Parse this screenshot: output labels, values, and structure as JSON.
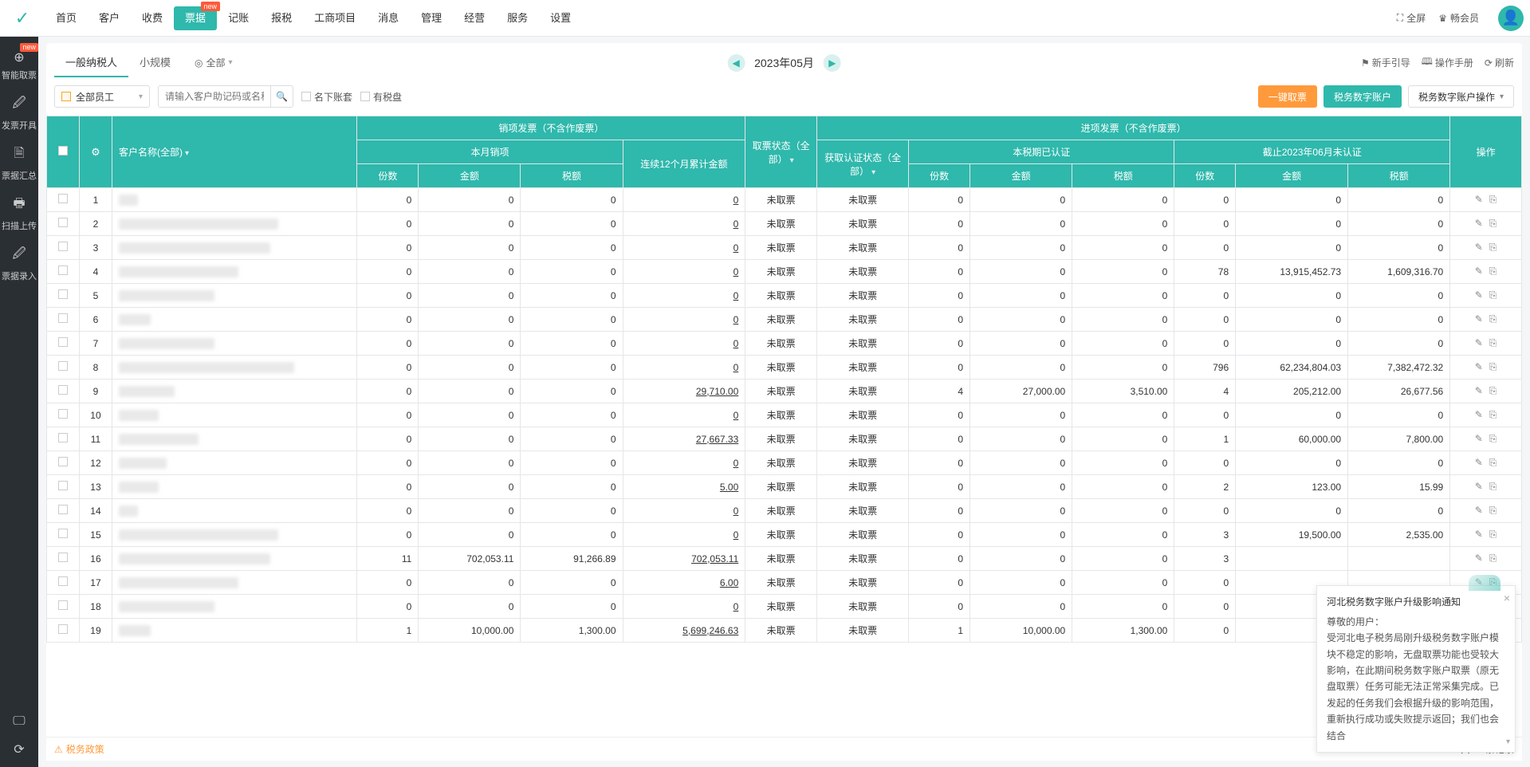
{
  "colors": {
    "accent": "#2fb8ac",
    "orange": "#ff9a3c",
    "badge_red": "#ff5a3a",
    "sidebar_bg": "#2a2f34",
    "border": "#e3e6e8"
  },
  "topnav": {
    "items": [
      "首页",
      "客户",
      "收费",
      "票据",
      "记账",
      "报税",
      "工商项目",
      "消息",
      "管理",
      "经营",
      "服务",
      "设置"
    ],
    "active_index": 3,
    "new_badge_indices": [
      3
    ],
    "right": {
      "fullscreen": "全屏",
      "member": "畅会员"
    }
  },
  "sidebar": {
    "items": [
      {
        "label": "智能取票",
        "icon": "⊕",
        "new": true
      },
      {
        "label": "发票开具",
        "icon": "🖉"
      },
      {
        "label": "票据汇总",
        "icon": "🗎"
      },
      {
        "label": "扫描上传",
        "icon": "🖶"
      },
      {
        "label": "票据录入",
        "icon": "🖉"
      }
    ],
    "bottom_icons": [
      "🖵",
      "⟳"
    ]
  },
  "tabs": {
    "items": [
      "一般纳税人",
      "小规模"
    ],
    "active_index": 0,
    "scope_icon": "◎",
    "scope_label": "全部",
    "period": "2023年05月",
    "right_links": [
      {
        "icon": "⚑",
        "label": "新手引导"
      },
      {
        "icon": "🕮",
        "label": "操作手册"
      },
      {
        "icon": "⟳",
        "label": "刷新"
      }
    ]
  },
  "toolbar": {
    "employee_label": "全部员工",
    "search_placeholder": "请输入客户助记码或名称",
    "chk1": "名下账套",
    "chk2": "有税盘",
    "btn_orange": "一键取票",
    "btn_teal": "税务数字账户",
    "btn_outline": "税务数字账户操作"
  },
  "table": {
    "header": {
      "customer": "客户名称(全部)",
      "sales_group": "销项发票（不含作废票）",
      "month_sales": "本月销项",
      "count": "份数",
      "amount": "金额",
      "tax": "税额",
      "rolling12": "连续12个月累计金额",
      "fetch_status": "取票状态（全部）",
      "purchase_group": "进项发票（不含作废票）",
      "period_cert": "本税期已认证",
      "uncert_until": "截止2023年06月未认证",
      "cert_status": "获取认证状态（全部）",
      "op": "操作"
    },
    "rows": [
      {
        "sc": 0,
        "sa": 0,
        "st": 0,
        "r12": "0",
        "fs": "未取票",
        "cs": "未取票",
        "pc": 0,
        "pa": 0,
        "pt": 0,
        "uc": 0,
        "ua": 0,
        "ut": 0
      },
      {
        "sc": 0,
        "sa": 0,
        "st": 0,
        "r12": "0",
        "fs": "未取票",
        "cs": "未取票",
        "pc": 0,
        "pa": 0,
        "pt": 0,
        "uc": 0,
        "ua": 0,
        "ut": 0
      },
      {
        "sc": 0,
        "sa": 0,
        "st": 0,
        "r12": "0",
        "fs": "未取票",
        "cs": "未取票",
        "pc": 0,
        "pa": 0,
        "pt": 0,
        "uc": 0,
        "ua": 0,
        "ut": 0
      },
      {
        "sc": 0,
        "sa": 0,
        "st": 0,
        "r12": "0",
        "fs": "未取票",
        "cs": "未取票",
        "pc": 0,
        "pa": 0,
        "pt": 0,
        "uc": 78,
        "ua": "13,915,452.73",
        "ut": "1,609,316.70"
      },
      {
        "sc": 0,
        "sa": 0,
        "st": 0,
        "r12": "0",
        "fs": "未取票",
        "cs": "未取票",
        "pc": 0,
        "pa": 0,
        "pt": 0,
        "uc": 0,
        "ua": 0,
        "ut": 0
      },
      {
        "sc": 0,
        "sa": 0,
        "st": 0,
        "r12": "0",
        "fs": "未取票",
        "cs": "未取票",
        "pc": 0,
        "pa": 0,
        "pt": 0,
        "uc": 0,
        "ua": 0,
        "ut": 0
      },
      {
        "sc": 0,
        "sa": 0,
        "st": 0,
        "r12": "0",
        "fs": "未取票",
        "cs": "未取票",
        "pc": 0,
        "pa": 0,
        "pt": 0,
        "uc": 0,
        "ua": 0,
        "ut": 0
      },
      {
        "sc": 0,
        "sa": 0,
        "st": 0,
        "r12": "0",
        "fs": "未取票",
        "cs": "未取票",
        "pc": 0,
        "pa": 0,
        "pt": 0,
        "uc": 796,
        "ua": "62,234,804.03",
        "ut": "7,382,472.32"
      },
      {
        "sc": 0,
        "sa": 0,
        "st": 0,
        "r12": "29,710.00",
        "fs": "未取票",
        "cs": "未取票",
        "pc": 4,
        "pa": "27,000.00",
        "pt": "3,510.00",
        "uc": 4,
        "ua": "205,212.00",
        "ut": "26,677.56"
      },
      {
        "sc": 0,
        "sa": 0,
        "st": 0,
        "r12": "0",
        "fs": "未取票",
        "cs": "未取票",
        "pc": 0,
        "pa": 0,
        "pt": 0,
        "uc": 0,
        "ua": 0,
        "ut": 0
      },
      {
        "sc": 0,
        "sa": 0,
        "st": 0,
        "r12": "27,667.33",
        "fs": "未取票",
        "cs": "未取票",
        "pc": 0,
        "pa": 0,
        "pt": 0,
        "uc": 1,
        "ua": "60,000.00",
        "ut": "7,800.00"
      },
      {
        "sc": 0,
        "sa": 0,
        "st": 0,
        "r12": "0",
        "fs": "未取票",
        "cs": "未取票",
        "pc": 0,
        "pa": 0,
        "pt": 0,
        "uc": 0,
        "ua": 0,
        "ut": 0
      },
      {
        "sc": 0,
        "sa": 0,
        "st": 0,
        "r12": "5.00",
        "fs": "未取票",
        "cs": "未取票",
        "pc": 0,
        "pa": 0,
        "pt": 0,
        "uc": 2,
        "ua": "123.00",
        "ut": "15.99"
      },
      {
        "sc": 0,
        "sa": 0,
        "st": 0,
        "r12": "0",
        "fs": "未取票",
        "cs": "未取票",
        "pc": 0,
        "pa": 0,
        "pt": 0,
        "uc": 0,
        "ua": 0,
        "ut": 0
      },
      {
        "sc": 0,
        "sa": 0,
        "st": 0,
        "r12": "0",
        "fs": "未取票",
        "cs": "未取票",
        "pc": 0,
        "pa": 0,
        "pt": 0,
        "uc": 3,
        "ua": "19,500.00",
        "ut": "2,535.00"
      },
      {
        "sc": 11,
        "sa": "702,053.11",
        "st": "91,266.89",
        "r12": "702,053.11",
        "fs": "未取票",
        "cs": "未取票",
        "pc": 0,
        "pa": 0,
        "pt": 0,
        "uc": 3,
        "ua": "",
        "ut": ""
      },
      {
        "sc": 0,
        "sa": 0,
        "st": 0,
        "r12": "6.00",
        "fs": "未取票",
        "cs": "未取票",
        "pc": 0,
        "pa": 0,
        "pt": 0,
        "uc": 0,
        "ua": "",
        "ut": ""
      },
      {
        "sc": 0,
        "sa": 0,
        "st": 0,
        "r12": "0",
        "fs": "未取票",
        "cs": "未取票",
        "pc": 0,
        "pa": 0,
        "pt": 0,
        "uc": 0,
        "ua": "",
        "ut": ""
      },
      {
        "sc": 1,
        "sa": "10,000.00",
        "st": "1,300.00",
        "r12": "5,699,246.63",
        "fs": "未取票",
        "cs": "未取票",
        "pc": 1,
        "pa": "10,000.00",
        "pt": "1,300.00",
        "uc": 0,
        "ua": "",
        "ut": ""
      }
    ],
    "name_widths": [
      24,
      200,
      190,
      150,
      120,
      40,
      120,
      220,
      70,
      50,
      100,
      60,
      50
    ]
  },
  "footer": {
    "policy": "税务政策",
    "count": "共116条记录"
  },
  "notif": {
    "title": "河北税务数字账户升级影响通知",
    "greet": "尊敬的用户：",
    "body": "受河北电子税务局刚升级税务数字账户模块不稳定的影响，无盘取票功能也受较大影响，在此期间税务数字账户取票（原无盘取票）任务可能无法正常采集完成。已发起的任务我们会根据升级的影响范围，重新执行成功或失败提示返回；我们也会结合"
  }
}
